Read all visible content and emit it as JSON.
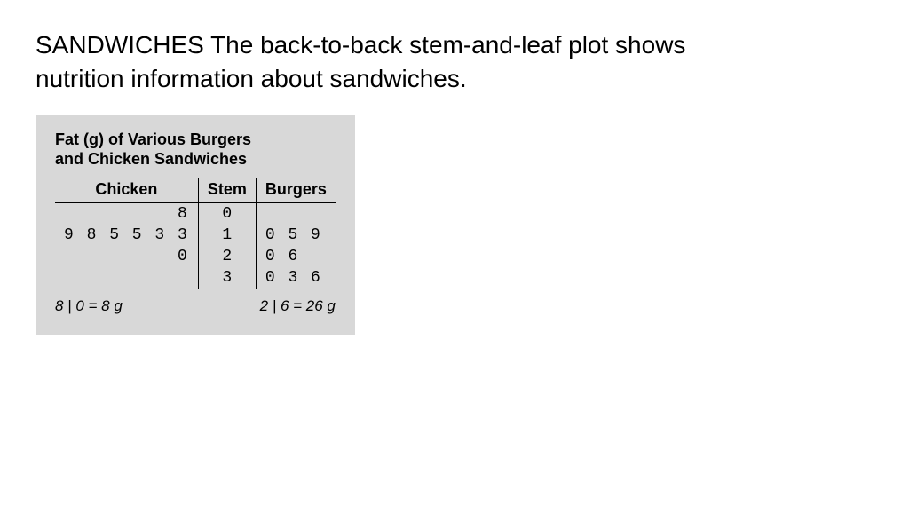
{
  "prompt": "SANDWICHES The back-to-back stem-and-leaf plot shows nutrition information about sandwiches.",
  "panel": {
    "title_line1": "Fat (g) of Various Burgers",
    "title_line2": "and Chicken Sandwiches",
    "background_color": "#d8d8d8",
    "headers": {
      "left": "Chicken",
      "stem": "Stem",
      "right": "Burgers"
    },
    "rows": [
      {
        "left": "8",
        "stem": "0",
        "right": ""
      },
      {
        "left": "9 8 5 5 3 3",
        "stem": "1",
        "right": "0 5 9"
      },
      {
        "left": "0",
        "stem": "2",
        "right": "0 6"
      },
      {
        "left": "",
        "stem": "3",
        "right": "0 3 6"
      }
    ],
    "key_left": "8 | 0 = 8 g",
    "key_right": "2 | 6 = 26 g"
  }
}
